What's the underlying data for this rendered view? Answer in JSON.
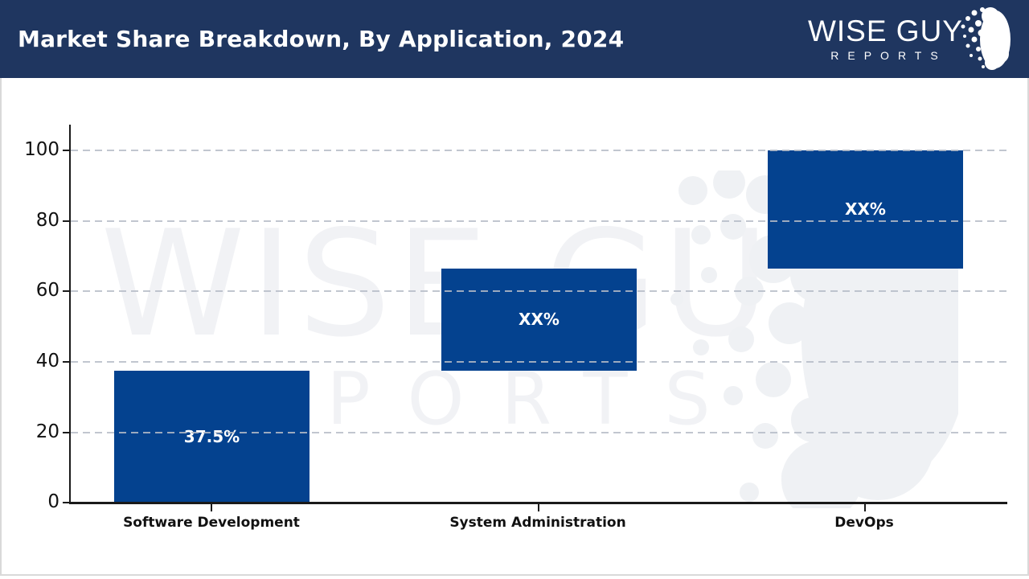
{
  "header": {
    "title": "Market Share Breakdown, By Application, 2024",
    "logo": {
      "line1": "WISE GUY",
      "line2": "REPORTS"
    }
  },
  "watermark": {
    "line1": "WISE GUY",
    "line2": "REPORTS"
  },
  "chart_data": {
    "type": "bar",
    "subtype": "waterfall",
    "title": "Market Share Breakdown, By Application, 2024",
    "xlabel": "",
    "ylabel": "",
    "categories": [
      "Software Development",
      "System Administration",
      "DevOps"
    ],
    "segments": [
      {
        "category": "Software Development",
        "start": 0,
        "end": 37.5,
        "label": "37.5%"
      },
      {
        "category": "System Administration",
        "start": 37.5,
        "end": 66.5,
        "label": "XX%"
      },
      {
        "category": "DevOps",
        "start": 66.5,
        "end": 100,
        "label": "XX%"
      }
    ],
    "y_ticks": [
      0,
      20,
      40,
      60,
      80,
      100
    ],
    "ylim": [
      0,
      107
    ],
    "grid": "dashed horizontal, drawn over bars",
    "legend": "none"
  },
  "colors": {
    "header_bg": "#1F3660",
    "bar": "#04428F",
    "bar_label": "#FFFFFF",
    "axis": "#1A1A1A",
    "gridline": "#C3C8D2",
    "watermark": "#F1F2F5",
    "card_border": "#D9D9D9"
  }
}
